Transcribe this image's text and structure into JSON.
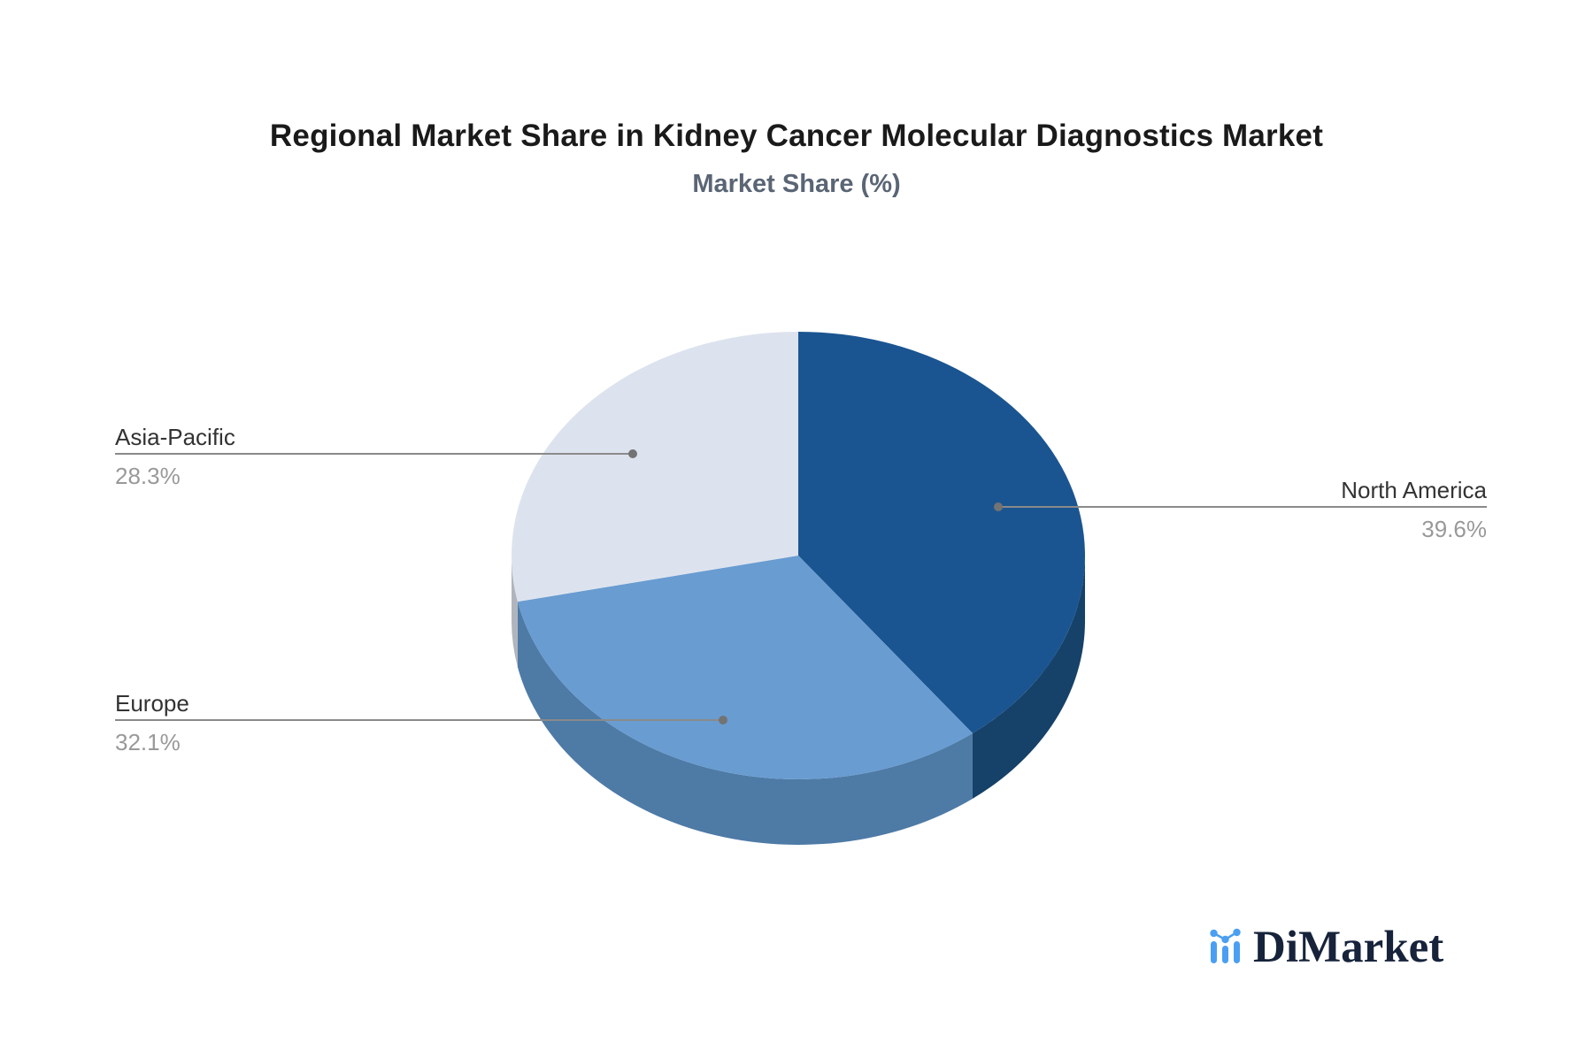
{
  "page": {
    "background": "#ffffff"
  },
  "chart_data": {
    "type": "pie",
    "style": "3d",
    "rotation": "clockwise-from-12-oclock",
    "title": "Regional Market Share in Kidney Cancer Molecular Diagnostics Market",
    "subtitle": "Market Share (%)",
    "unit": "%",
    "legend_position": "none",
    "slices": [
      {
        "label": "North America",
        "value": 39.6,
        "display_value": "39.6%",
        "color": "#1a5591",
        "side_color": "#164169",
        "label_side": "right"
      },
      {
        "label": "Europe",
        "value": 32.1,
        "display_value": "32.1%",
        "color": "#699cd1",
        "side_color": "#4e7aa6",
        "label_side": "left"
      },
      {
        "label": "Asia-Pacific",
        "value": 28.3,
        "display_value": "28.3%",
        "color": "#dde3ee",
        "side_color": "#b0b5bd",
        "label_side": "left"
      }
    ],
    "leader_line_color": "#8a8a8a",
    "leader_dot_color": "#737373",
    "label_color": "#333333",
    "value_color": "#999999",
    "title_color": "#1a1a1a",
    "subtitle_color": "#5a6575"
  },
  "branding": {
    "logo_text": "DiMarket",
    "logo_icon": "bar-chart-with-trend-dots",
    "logo_icon_color": "#4a9ff2",
    "logo_text_color": "#16233b"
  }
}
